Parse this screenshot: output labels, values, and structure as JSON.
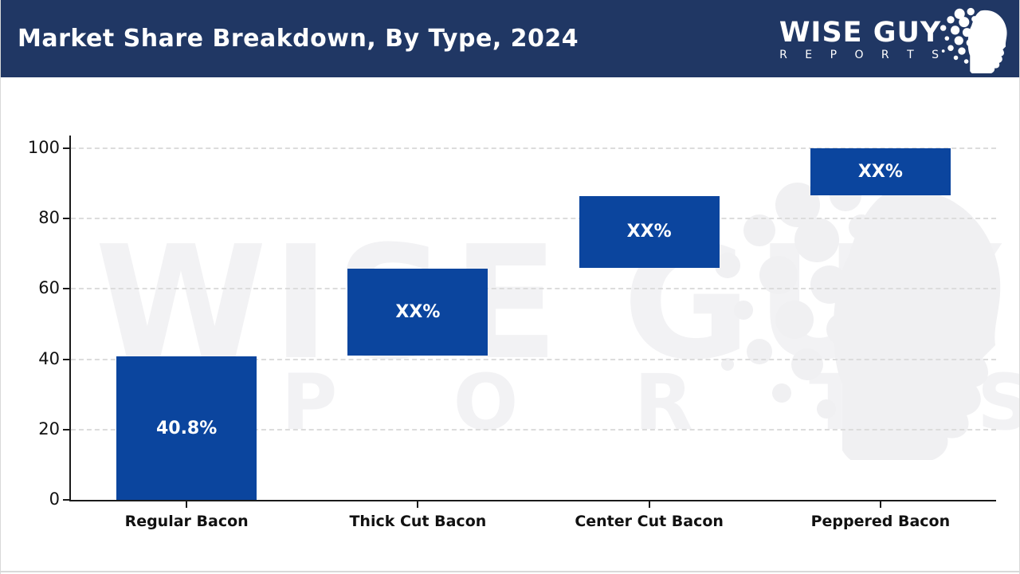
{
  "header": {
    "title": "Market Share Breakdown, By Type, 2024",
    "logo": {
      "line1": "WISE GUY",
      "line2": "R E P O R T S",
      "head_icon": "dotted-face-profile"
    }
  },
  "watermark": {
    "line1": "WISE GUY",
    "line2": "P O R T S",
    "head_icon": "dotted-face-profile"
  },
  "colors": {
    "header_bg": "#203764",
    "bar": "#0B459E",
    "grid": "#DCDCDC",
    "axis": "#1A1A1A",
    "value_label": "#FFFFFF",
    "watermark": "#F2F2F4"
  },
  "chart_data": {
    "type": "bar",
    "subtype": "waterfall-floating-bars",
    "title": "Market Share Breakdown, By Type, 2024",
    "categories": [
      "Regular Bacon",
      "Thick Cut Bacon",
      "Center Cut Bacon",
      "Peppered Bacon"
    ],
    "bars": [
      {
        "category": "Regular Bacon",
        "label": "40.8%",
        "start": 0,
        "end": 40.8
      },
      {
        "category": "Thick Cut Bacon",
        "label": "XX%",
        "start": 41.0,
        "end": 65.8
      },
      {
        "category": "Center Cut Bacon",
        "label": "XX%",
        "start": 66.0,
        "end": 86.4
      },
      {
        "category": "Peppered Bacon",
        "label": "XX%",
        "start": 86.6,
        "end": 100.0
      }
    ],
    "xlabel": "",
    "ylabel": "",
    "ylim": [
      0,
      100
    ],
    "yticks": [
      0,
      20,
      40,
      60,
      80,
      100
    ],
    "grid": "dashed-horizontal",
    "legend": "none"
  }
}
